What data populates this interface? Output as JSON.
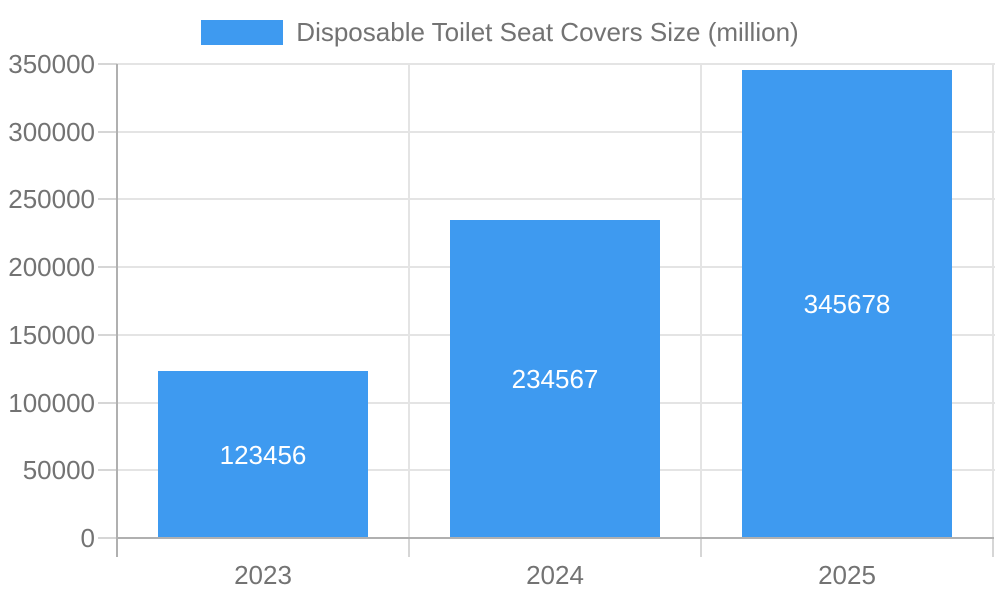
{
  "legend": {
    "label": "Disposable Toilet Seat Covers Size (million)"
  },
  "chart_data": {
    "type": "bar",
    "title": "Disposable Toilet Seat Covers Size (million)",
    "categories": [
      "2023",
      "2024",
      "2025"
    ],
    "values": [
      123456,
      234567,
      345678
    ],
    "series": [
      {
        "name": "Disposable Toilet Seat Covers Size (million)",
        "values": [
          123456,
          234567,
          345678
        ]
      }
    ],
    "value_labels": [
      "123456",
      "234567",
      "345678"
    ],
    "xlabel": "",
    "ylabel": "",
    "ylim": [
      0,
      350000
    ],
    "ytick_step": 50000,
    "yticks": [
      "0",
      "50000",
      "100000",
      "150000",
      "200000",
      "250000",
      "300000",
      "350000"
    ],
    "grid": true,
    "legend_position": "top-center",
    "value_label_position": "inside-center"
  },
  "colors": {
    "bar": "#3E9AF0",
    "grid": "#e4e4e4",
    "axis": "#b0b0b0",
    "tick": "#d6d6d6",
    "text": "#737373",
    "value_label": "#ffffff",
    "background": "#ffffff"
  }
}
